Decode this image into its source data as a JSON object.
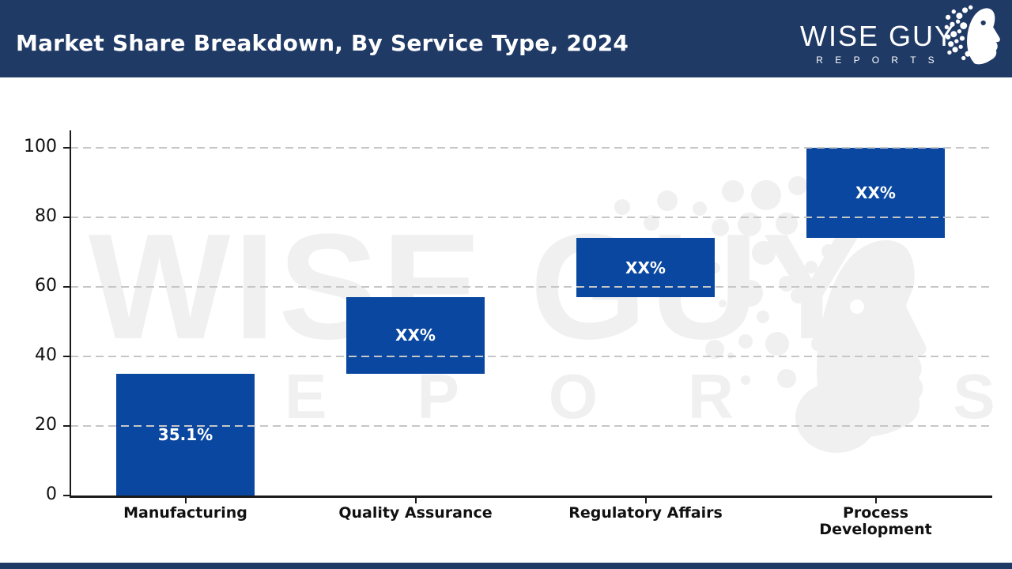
{
  "header": {
    "title": "Market Share Breakdown, By Service Type, 2024",
    "logo": {
      "primary": "WISE GUY",
      "secondary": "R E P O R T S"
    }
  },
  "watermark": {
    "primary": "WISE GUY",
    "secondary": "R E P O R T S"
  },
  "chart_data": {
    "type": "bar",
    "subtype": "waterfall",
    "title": "Market Share Breakdown, By Service Type, 2024",
    "categories": [
      "Manufacturing",
      "Quality Assurance",
      "Regulatory Affairs",
      "Process Development"
    ],
    "categories_display": [
      "Manufacturing",
      "Quality Assurance",
      "Regulatory Affairs",
      "Process\nDevelopment"
    ],
    "segments": [
      {
        "category": "Manufacturing",
        "start": 0,
        "end": 35.1,
        "label": "35.1%"
      },
      {
        "category": "Quality Assurance",
        "start": 35.1,
        "end": 57,
        "label": "XX%"
      },
      {
        "category": "Regulatory Affairs",
        "start": 57,
        "end": 74,
        "label": "XX%"
      },
      {
        "category": "Process Development",
        "start": 74,
        "end": 100,
        "label": "XX%"
      }
    ],
    "xlabel": "",
    "ylabel": "",
    "yticks": [
      0,
      20,
      40,
      60,
      80,
      100
    ],
    "ylim": [
      0,
      105
    ],
    "grid": true,
    "legend_visible": false,
    "colors": {
      "bar": "#0a47a0",
      "bar_label": "#ffffff",
      "grid_line": "#c6c6c6",
      "axis_line": "#1a1a1a",
      "tick_label": "#111111",
      "header_bg": "#203a66",
      "footer_bg": "#203a66",
      "watermark": "#f0f0f0"
    }
  }
}
